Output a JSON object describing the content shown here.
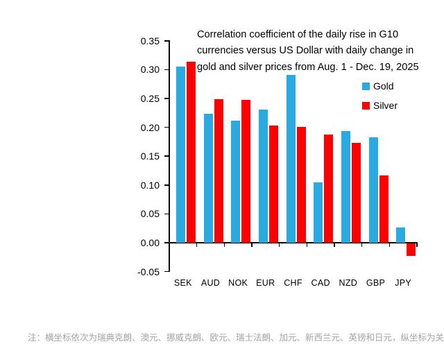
{
  "chart_data": {
    "type": "bar",
    "title": "Correlation coefficient of the daily rise in G10 currencies versus US Dollar with daily change in gold and silver prices from Aug. 1 - Dec. 19, 2025",
    "title_lines": [
      "Correlation coefficient of the daily rise in G10",
      "currencies versus US Dollar with daily change in",
      "gold and silver prices from Aug. 1 - Dec. 19, 2025"
    ],
    "categories": [
      "SEK",
      "AUD",
      "NOK",
      "EUR",
      "CHF",
      "CAD",
      "NZD",
      "GBP",
      "JPY"
    ],
    "series": [
      {
        "name": "Gold",
        "color": "#29ABE2",
        "values": [
          0.305,
          0.224,
          0.211,
          0.231,
          0.291,
          0.104,
          0.193,
          0.183,
          0.026
        ]
      },
      {
        "name": "Silver",
        "color": "#FE0000",
        "values": [
          0.314,
          0.249,
          0.248,
          0.203,
          0.201,
          0.188,
          0.173,
          0.117,
          -0.022
        ]
      }
    ],
    "xlabel": "",
    "ylabel": "",
    "ylim": [
      -0.05,
      0.35
    ],
    "ytick_step": 0.05,
    "ytick_labels": [
      "0.35",
      "0.30",
      "0.25",
      "0.20",
      "0.15",
      "0.10",
      "0.05",
      "0.00",
      "-0.05"
    ],
    "grid": false,
    "legend_position": "upper-right-inside",
    "axis_color": "#000000",
    "background_color": "#FFFFFF"
  },
  "footnote": {
    "text": "注：横坐标依次为瑞典克朗、澳元、挪威克朗、欧元、瑞士法朗、加元、新西兰元、英镑和日元，纵坐标为关联度"
  }
}
